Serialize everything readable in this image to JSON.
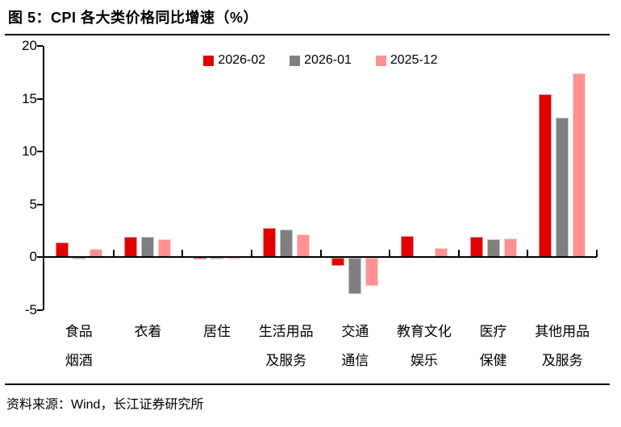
{
  "header": {
    "title": "图 5：CPI 各大类价格同比增速（%）"
  },
  "footer": {
    "source": "资料来源：Wind，长江证券研究所"
  },
  "colors": {
    "series_red": "#e00000",
    "series_gray": "#7f7f7f",
    "series_pink": "#ff9191",
    "axis": "#000000",
    "background": "#ffffff"
  },
  "chart_data": {
    "type": "bar",
    "title": "图 5：CPI 各大类价格同比增速（%）",
    "xlabel": "",
    "ylabel": "",
    "ylim": [
      -5,
      20
    ],
    "yticks": [
      20,
      15,
      10,
      5,
      0,
      -5
    ],
    "grid": false,
    "legend_position": "top-center",
    "categories": [
      "食品烟酒",
      "衣着",
      "居住",
      "生活用品及服务",
      "交通通信",
      "教育文化娱乐",
      "医疗保健",
      "其他用品及服务"
    ],
    "category_lines": [
      [
        "食品",
        "烟酒"
      ],
      [
        "衣着",
        ""
      ],
      [
        "居住",
        ""
      ],
      [
        "生活用品",
        "及服务"
      ],
      [
        "交通",
        "通信"
      ],
      [
        "教育文化",
        "娱乐"
      ],
      [
        "医疗",
        "保健"
      ],
      [
        "其他用品",
        "及服务"
      ]
    ],
    "series": [
      {
        "name": "2026-02",
        "color": "#e00000",
        "values": [
          1.4,
          1.9,
          -0.2,
          2.8,
          -0.8,
          2.0,
          1.9,
          15.4
        ]
      },
      {
        "name": "2026-01",
        "color": "#7f7f7f",
        "values": [
          -0.2,
          1.9,
          -0.1,
          2.6,
          -3.5,
          0.0,
          1.7,
          13.2
        ]
      },
      {
        "name": "2025-12",
        "color": "#ff9191",
        "values": [
          0.8,
          1.7,
          -0.1,
          2.2,
          -2.7,
          0.9,
          1.8,
          17.4
        ]
      }
    ]
  }
}
